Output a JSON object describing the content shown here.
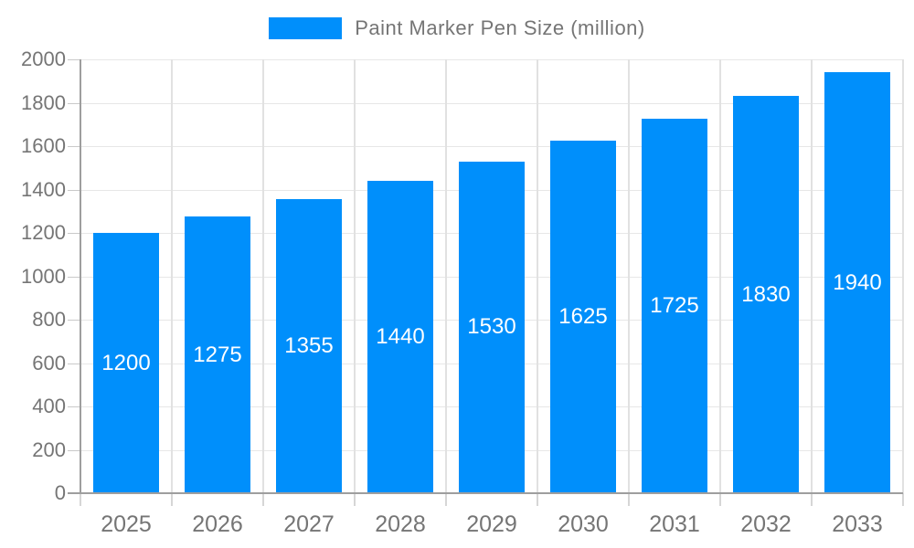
{
  "legend": {
    "label": "Paint Marker Pen Size (million)",
    "swatch_color": "#008FFB"
  },
  "chart_data": {
    "type": "bar",
    "title": "Paint Marker Pen Size (million)",
    "series_name": "Paint Marker Pen Size (million)",
    "categories": [
      "2025",
      "2026",
      "2027",
      "2028",
      "2029",
      "2030",
      "2031",
      "2032",
      "2033"
    ],
    "values": [
      1200,
      1275,
      1355,
      1440,
      1530,
      1625,
      1725,
      1830,
      1940
    ],
    "value_labels": [
      "1200",
      "1275",
      "1355",
      "1440",
      "1530",
      "1625",
      "1725",
      "1830",
      "1940"
    ],
    "xlabel": "",
    "ylabel": "",
    "ylim": [
      0,
      2000
    ],
    "ytick_interval": 200,
    "ytick_labels": [
      "0",
      "200",
      "400",
      "600",
      "800",
      "1000",
      "1200",
      "1400",
      "1600",
      "1800",
      "2000"
    ],
    "grid": true,
    "legend_position": "top",
    "bar_color": "#008FFB",
    "value_label_color": "#FFFFFF",
    "axis_text_color": "#757575",
    "grid_color": "#e5e5e5",
    "axis_line_color": "#9e9e9e"
  }
}
